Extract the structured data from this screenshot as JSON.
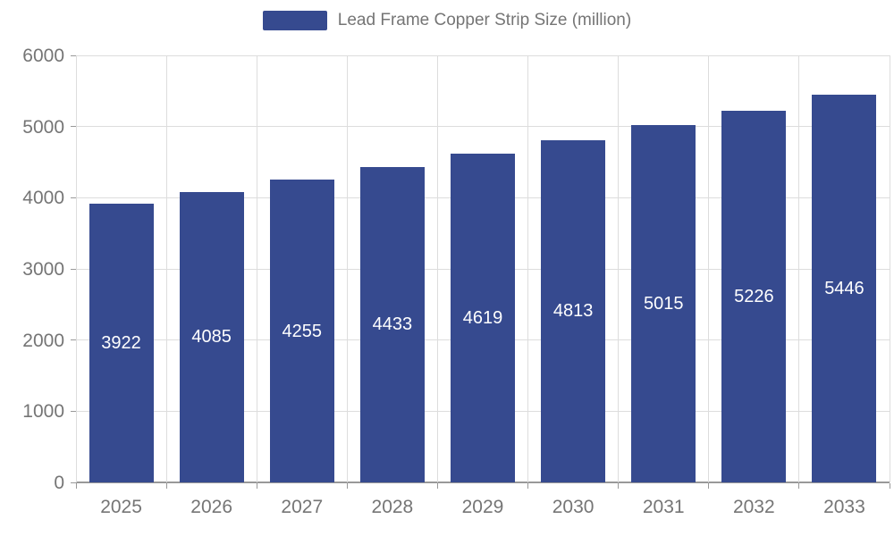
{
  "chart_data": {
    "type": "bar",
    "title": "Lead Frame Copper Strip Size (million)",
    "categories": [
      "2025",
      "2026",
      "2027",
      "2028",
      "2029",
      "2030",
      "2031",
      "2032",
      "2033"
    ],
    "values": [
      3922,
      4085,
      4255,
      4433,
      4619,
      4813,
      5015,
      5226,
      5446
    ],
    "xlabel": "",
    "ylabel": "",
    "ylim": [
      0,
      6000
    ],
    "yticks": [
      0,
      1000,
      2000,
      3000,
      4000,
      5000,
      6000
    ],
    "grid": true,
    "legend_position": "top-center",
    "value_labels": "inside-center",
    "colors": {
      "bar": "#364A8F",
      "value_label": "#ffffff",
      "axis_text": "#757575",
      "gridline": "#dddddd",
      "axis_line": "#999999",
      "background": "#ffffff"
    }
  }
}
